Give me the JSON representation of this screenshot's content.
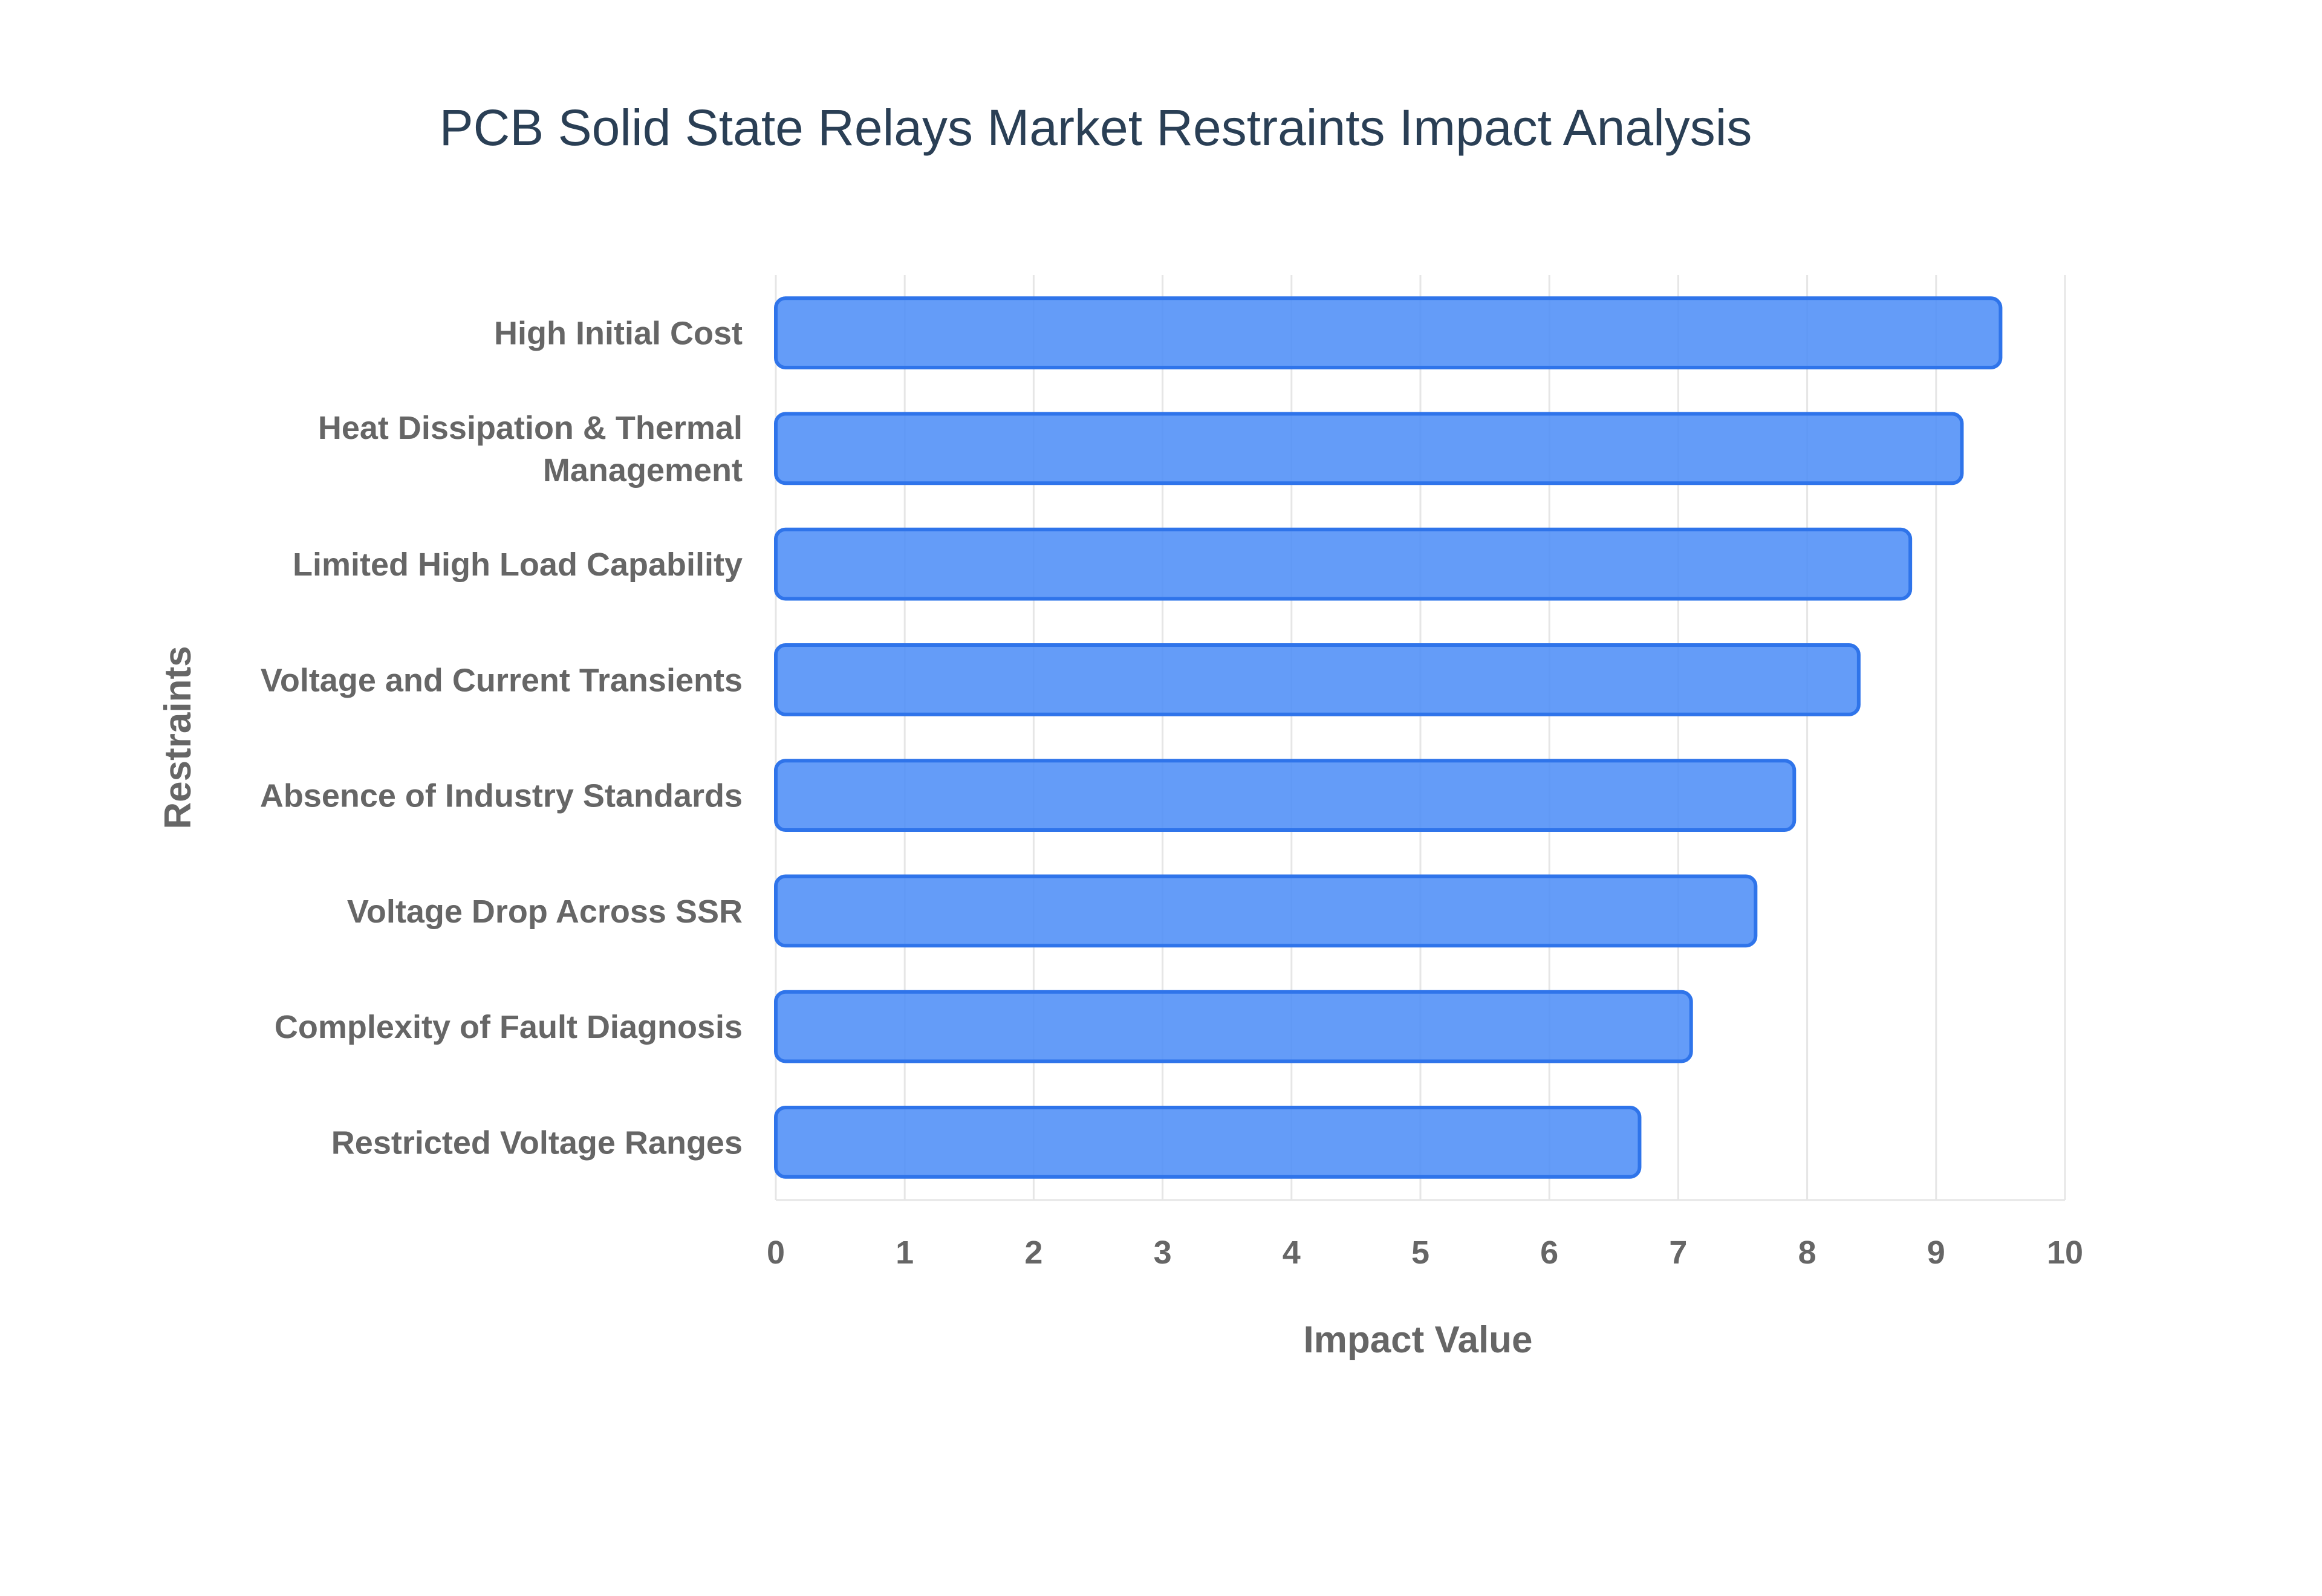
{
  "chart_data": {
    "type": "bar",
    "orientation": "horizontal",
    "title": "PCB Solid State Relays Market Restraints Impact Analysis",
    "xlabel": "Impact Value",
    "ylabel": "Restraints",
    "xlim": [
      0,
      10
    ],
    "xticks": [
      "0",
      "1",
      "2",
      "3",
      "4",
      "5",
      "6",
      "7",
      "8",
      "9",
      "10"
    ],
    "grid": true,
    "categories": [
      [
        "High Initial Cost"
      ],
      [
        "Heat Dissipation & Thermal",
        "Management"
      ],
      [
        "Limited High Load Capability"
      ],
      [
        "Voltage and Current Transients"
      ],
      [
        "Absence of Industry Standards"
      ],
      [
        "Voltage Drop Across SSR"
      ],
      [
        "Complexity of Fault Diagnosis"
      ],
      [
        "Restricted Voltage Ranges"
      ]
    ],
    "values": [
      9.5,
      9.2,
      8.8,
      8.4,
      7.9,
      7.6,
      7.1,
      6.7
    ],
    "bar_color": "#4f8ef7",
    "bar_edge_color": "#2f74ea"
  }
}
